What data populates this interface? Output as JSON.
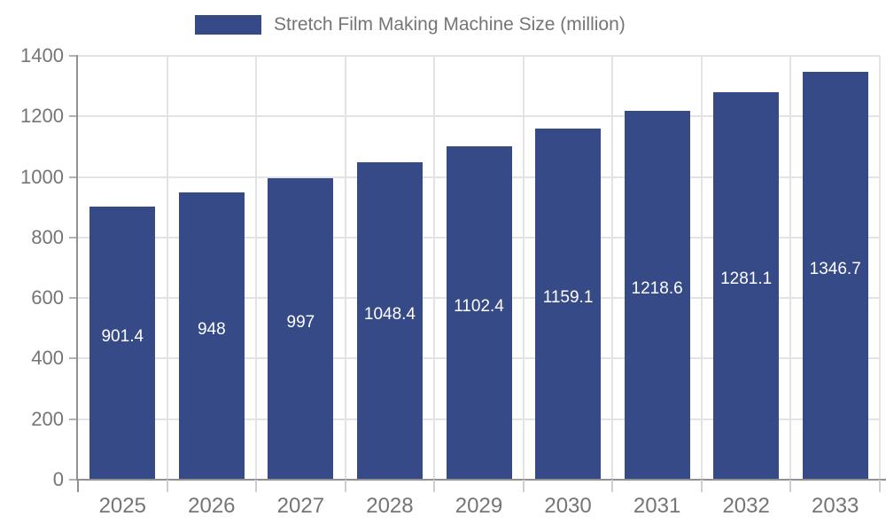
{
  "chart_data": {
    "type": "bar",
    "title": "Stretch Film Making Machine Size (million)",
    "legend": {
      "label": "Stretch Film Making Machine Size (million)",
      "position": "top-center"
    },
    "categories": [
      "2025",
      "2026",
      "2027",
      "2028",
      "2029",
      "2030",
      "2031",
      "2032",
      "2033"
    ],
    "values": [
      901.4,
      948,
      997,
      1048.4,
      1102.4,
      1159.1,
      1218.6,
      1281.1,
      1346.7
    ],
    "value_labels": [
      "901.4",
      "948",
      "997",
      "1048.4",
      "1102.4",
      "1159.1",
      "1218.6",
      "1281.1",
      "1346.7"
    ],
    "xlabel": "",
    "ylabel": "",
    "ylim": [
      0,
      1400
    ],
    "ytick_step": 200,
    "ytick_labels": [
      "0",
      "200",
      "400",
      "600",
      "800",
      "1000",
      "1200",
      "1400"
    ],
    "grid": true,
    "colors": {
      "bar": "#364A87",
      "grid": "#E3E3E3",
      "axis": "#919191",
      "tick_label": "#757575",
      "bar_label": "#FFFFFF",
      "background": "#FFFFFF"
    }
  }
}
